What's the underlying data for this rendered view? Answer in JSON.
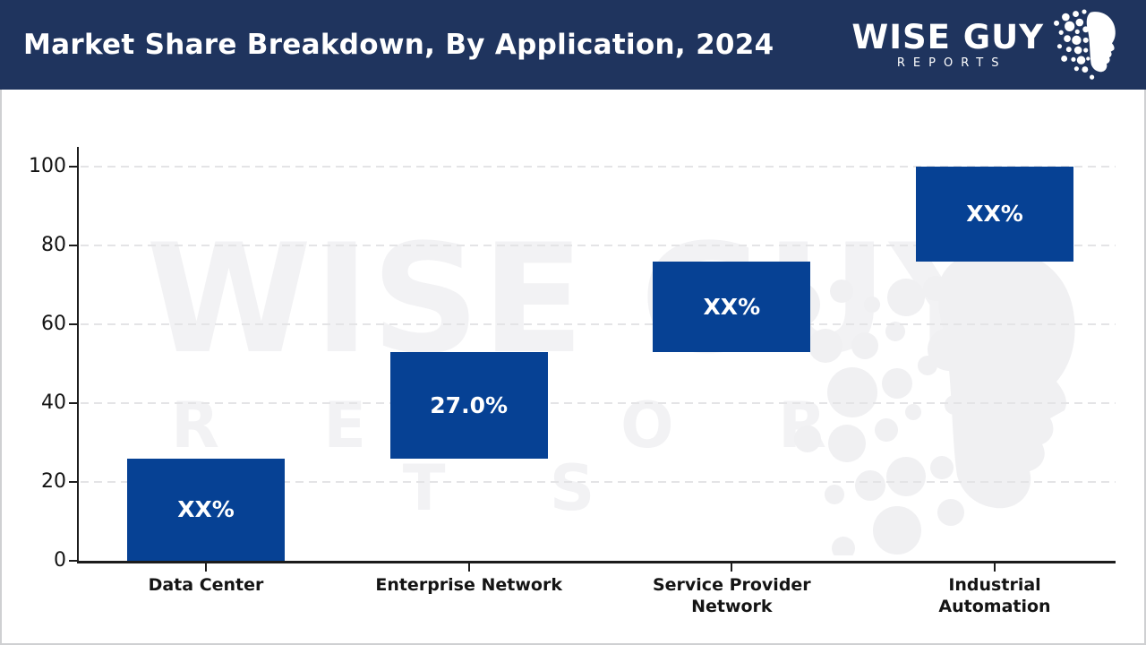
{
  "header": {
    "title": "Market Share Breakdown, By Application, 2024",
    "logo": {
      "line1": "WISE GUY",
      "line2": "REPORTS"
    }
  },
  "watermark": {
    "line1": "WISE GUY",
    "line2": "R E P O R T S"
  },
  "colors": {
    "header_bg": "#1f345e",
    "bar": "#064194",
    "grid": "#e4e4e6",
    "axis": "#1c1c1c",
    "tick_text": "#141414",
    "watermark": "#f2f2f4",
    "label_text": "#ffffff"
  },
  "chart_data": {
    "type": "bar",
    "variant": "floating-waterfall",
    "title": "Market Share Breakdown, By Application, 2024",
    "categories": [
      "Data Center",
      "Enterprise Network",
      "Service Provider\nNetwork",
      "Industrial\nAutomation"
    ],
    "segments": [
      {
        "category": "Data Center",
        "base": 0,
        "top": 26,
        "label": "XX%"
      },
      {
        "category": "Enterprise Network",
        "base": 26,
        "top": 53,
        "label": "27.0%"
      },
      {
        "category": "Service Provider Network",
        "base": 53,
        "top": 76,
        "label": "XX%"
      },
      {
        "category": "Industrial Automation",
        "base": 76,
        "top": 100,
        "label": "XX%"
      }
    ],
    "ylim": [
      0,
      100
    ],
    "yticks": [
      0,
      20,
      40,
      60,
      80,
      100
    ],
    "xlabel": "",
    "ylabel": "",
    "grid": "horizontal-dashed",
    "legend": null
  }
}
